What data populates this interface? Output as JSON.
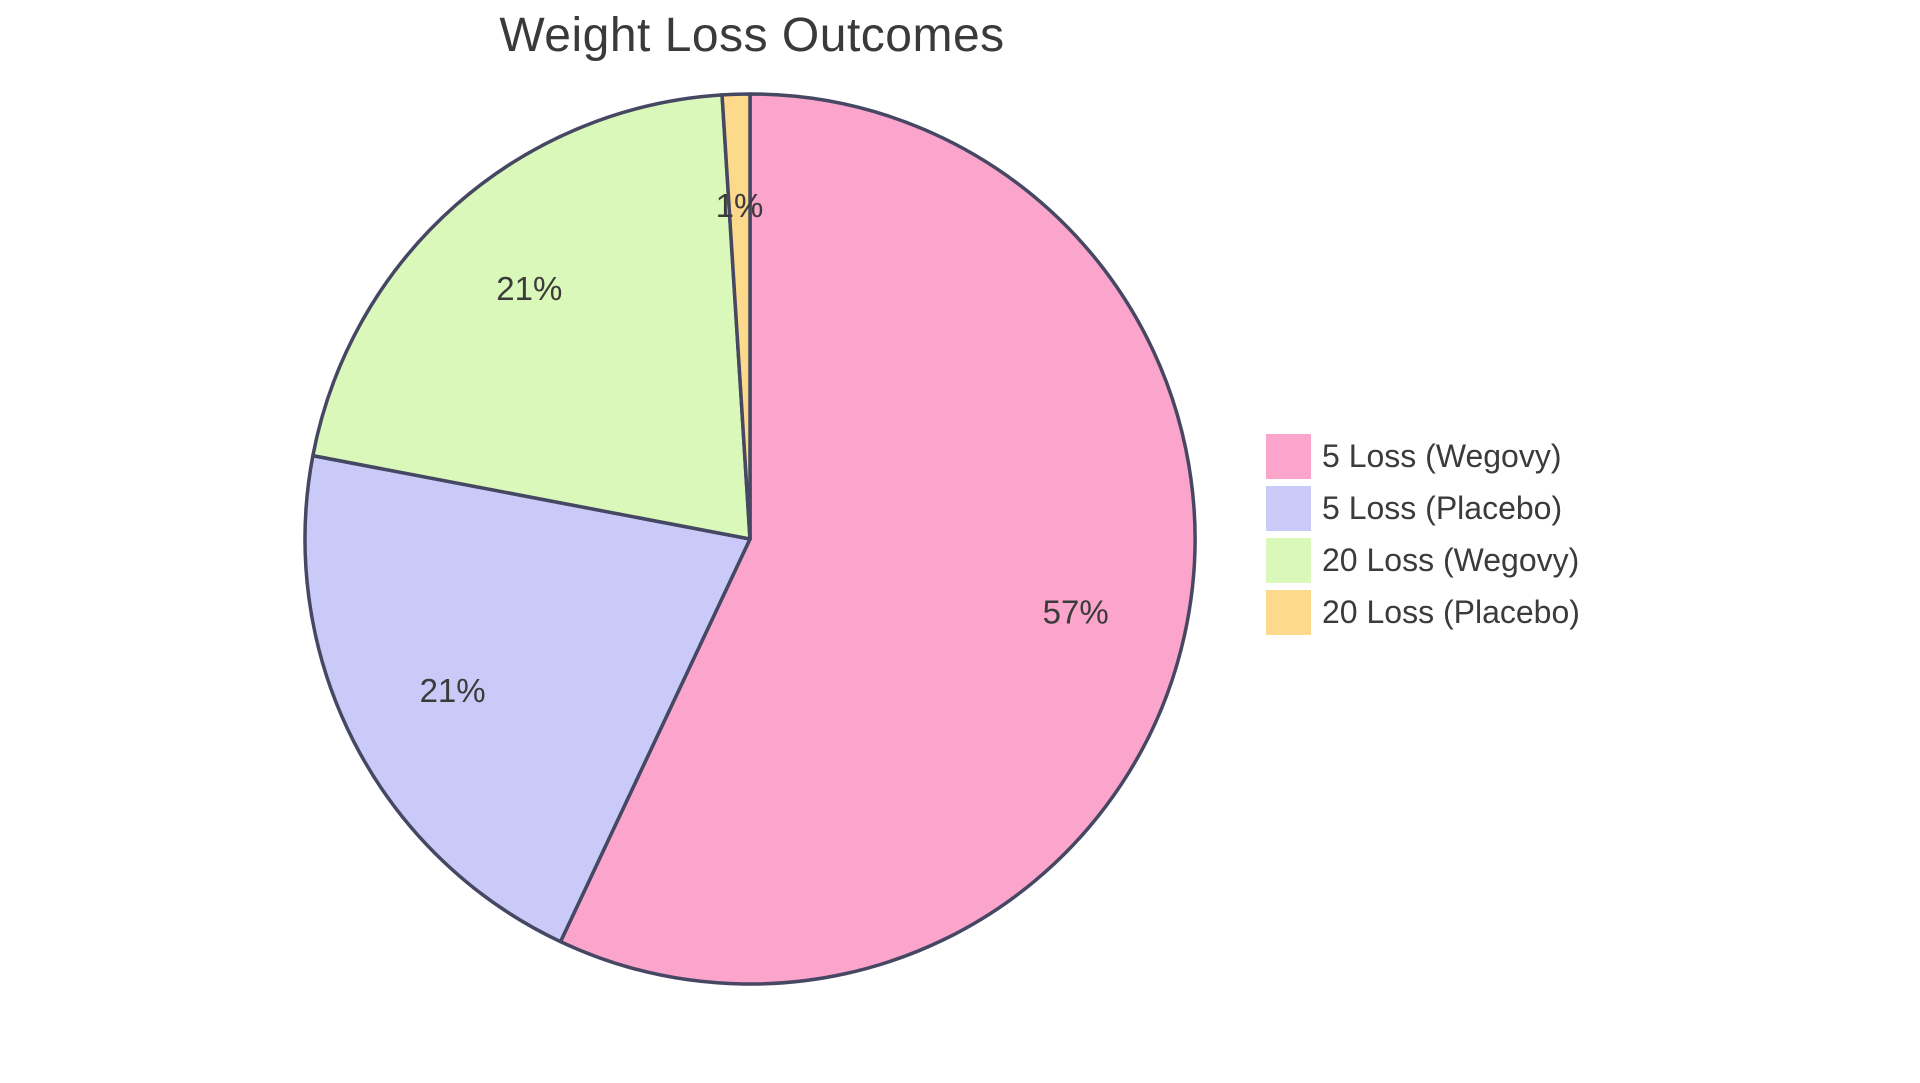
{
  "page": {
    "background_color": "#ffffff"
  },
  "chart_data": {
    "type": "pie",
    "title": "Weight Loss Outcomes",
    "labels": [
      "5 Loss (Wegovy)",
      "5 Loss (Placebo)",
      "20 Loss (Wegovy)",
      "20 Loss (Placebo)"
    ],
    "values": [
      57,
      21,
      21,
      1
    ],
    "percent_labels": [
      "57%",
      "21%",
      "21%",
      "1%"
    ],
    "colors": [
      "#FBA4CC",
      "#C9CAF7",
      "#D9F8B9",
      "#FDD98C"
    ],
    "slice_border_color": "#454763",
    "slice_border_width": 3.5,
    "start_angle_deg": 0,
    "direction": "clockwise",
    "legend_position": "right",
    "title_color": "#3A3A3A",
    "label_color": "#3B3B3B"
  }
}
